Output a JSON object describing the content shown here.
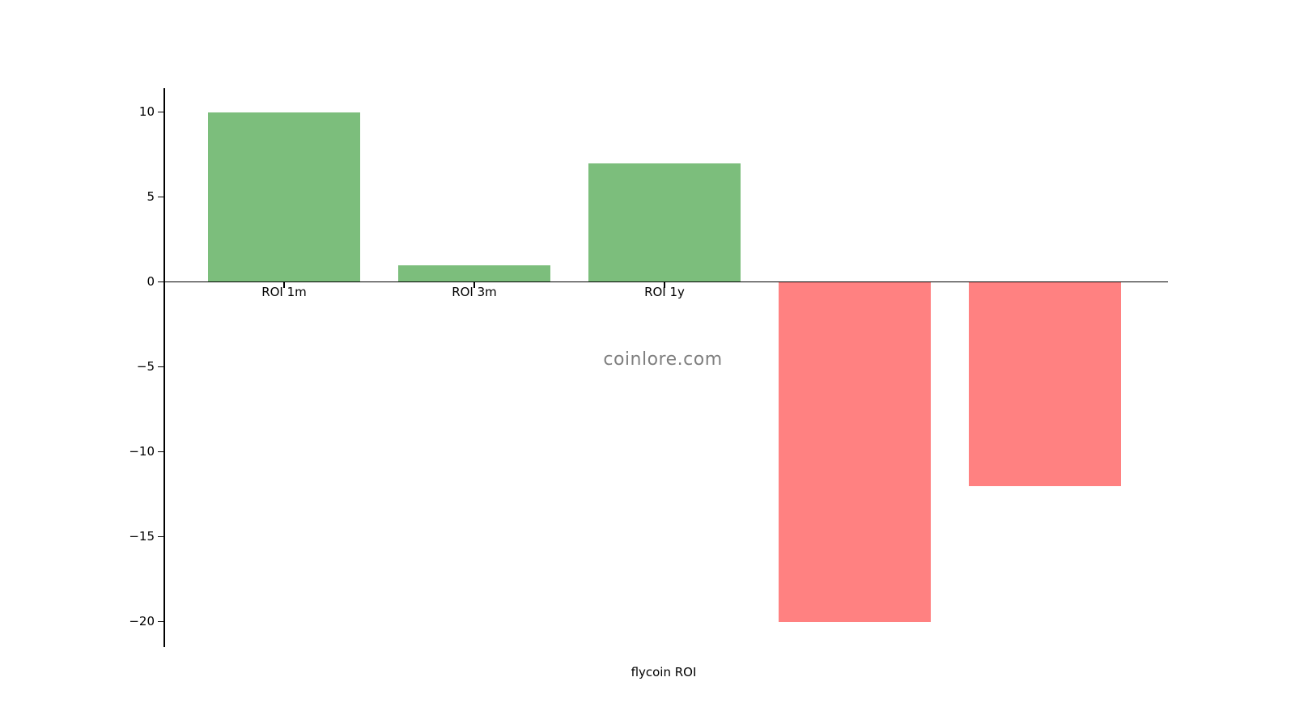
{
  "chart_data": {
    "type": "bar",
    "title": "",
    "xlabel": "flycoin ROI",
    "ylabel": "",
    "categories": [
      "ROI 1m",
      "ROI 3m",
      "ROI 1y",
      "",
      ""
    ],
    "values": [
      10,
      1,
      7,
      -20,
      -12
    ],
    "yticks": [
      {
        "value": 10,
        "label": "10"
      },
      {
        "value": 5,
        "label": "5"
      },
      {
        "value": 0,
        "label": "0"
      },
      {
        "value": -5,
        "label": "−5"
      },
      {
        "value": -10,
        "label": "−10"
      },
      {
        "value": -15,
        "label": "−15"
      },
      {
        "value": -20,
        "label": "−20"
      }
    ],
    "ylim": [
      -21.5,
      11.4
    ],
    "grid": false,
    "legend": "none",
    "positive_color": "#7cbe7c",
    "negative_color": "#ff8181",
    "axis_color": "#000000",
    "watermark": {
      "text": "coinlore.com",
      "color": "#7f7f7f"
    }
  }
}
